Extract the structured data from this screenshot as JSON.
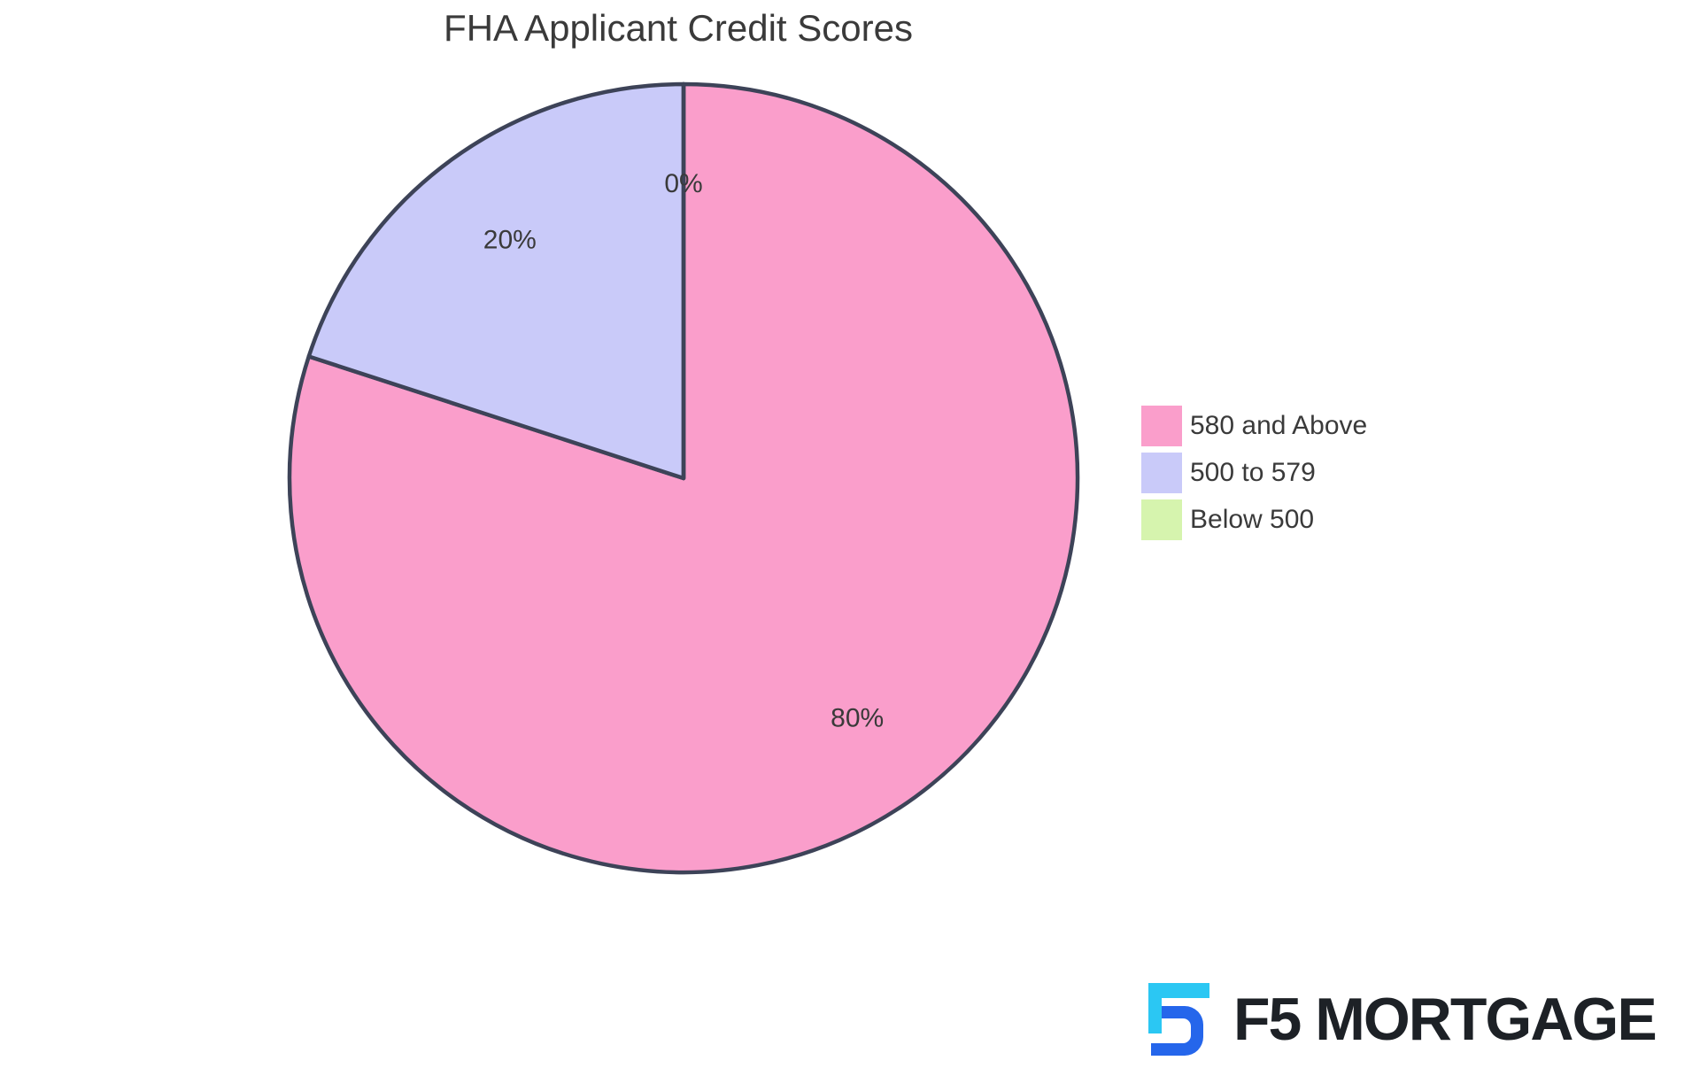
{
  "chart_data": {
    "type": "pie",
    "title": "FHA Applicant Credit Scores",
    "categories": [
      "580 and Above",
      "500 to 579",
      "Below 500"
    ],
    "values": [
      80,
      20,
      0
    ],
    "slice_labels": [
      "80%",
      "20%",
      "0%"
    ],
    "colors": [
      "#FA9ECB",
      "#C9CAF9",
      "#D6F4AE"
    ],
    "border_color": "#3D4358",
    "label_color": "#3A3A3A",
    "start_angle": "top",
    "direction": "clockwise",
    "legend_position": "right"
  },
  "branding": {
    "wordmark": "F5 MORTGAGE",
    "wordmark_color": "#1D2126",
    "logo_cyan": "#2BC7F3",
    "logo_blue": "#2566EB"
  }
}
